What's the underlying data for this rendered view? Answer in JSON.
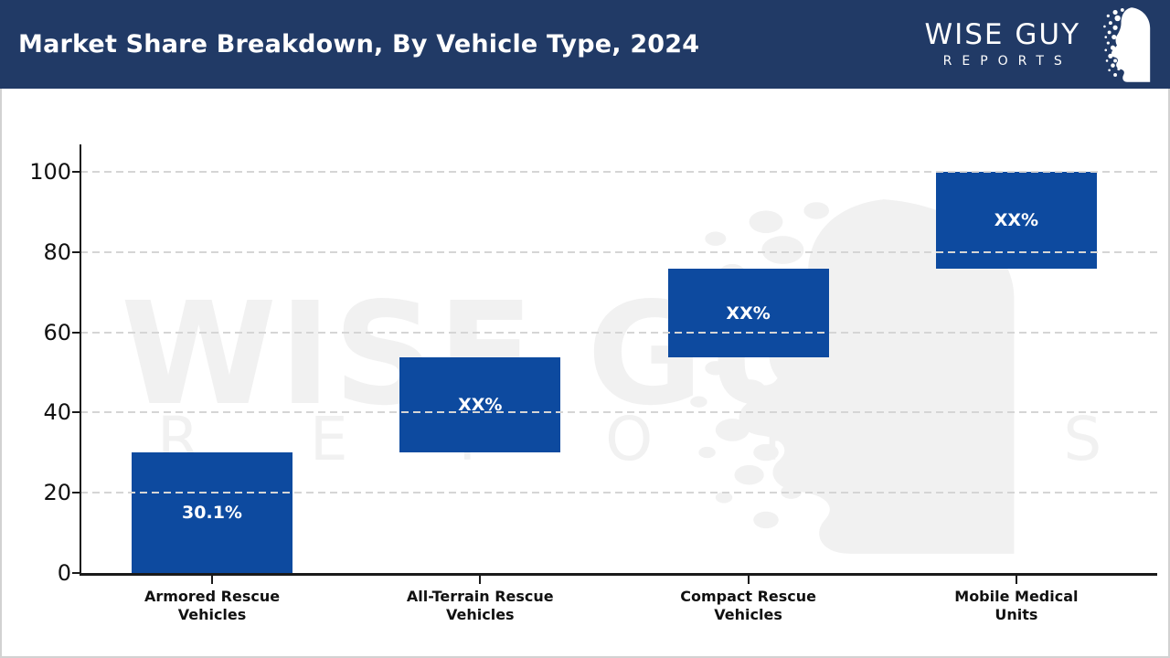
{
  "header": {
    "title": "Market Share Breakdown, By Vehicle Type, 2024",
    "bg_color": "#213a66",
    "logo": {
      "line1": "WISE GUY",
      "line2": "REPORTS"
    }
  },
  "watermark": {
    "line1": "WISE GUY",
    "line2": "R E P O R T S"
  },
  "chart_data": {
    "type": "bar",
    "subtype": "waterfall",
    "title": "Market Share Breakdown, By Vehicle Type, 2024",
    "xlabel": "",
    "ylabel": "",
    "ylim": [
      0,
      106
    ],
    "yticks": [
      0,
      20,
      40,
      60,
      80,
      100
    ],
    "grid": true,
    "legend": false,
    "bar_color": "#0d4a9f",
    "grid_color": "#d5d5d5",
    "categories": [
      "Armored Rescue Vehicles",
      "All-Terrain Rescue Vehicles",
      "Compact Rescue Vehicles",
      "Mobile Medical Units"
    ],
    "bars": [
      {
        "label_lines": [
          "Armored Rescue",
          "Vehicles"
        ],
        "start": 0,
        "end": 30.1,
        "value_label": "30.1%"
      },
      {
        "label_lines": [
          "All-Terrain Rescue",
          "Vehicles"
        ],
        "start": 30.1,
        "end": 53.8,
        "value_label": "XX%"
      },
      {
        "label_lines": [
          "Compact Rescue",
          "Vehicles"
        ],
        "start": 53.8,
        "end": 75.8,
        "value_label": "XX%"
      },
      {
        "label_lines": [
          "Mobile Medical",
          "Units"
        ],
        "start": 75.8,
        "end": 100,
        "value_label": "XX%"
      }
    ]
  }
}
